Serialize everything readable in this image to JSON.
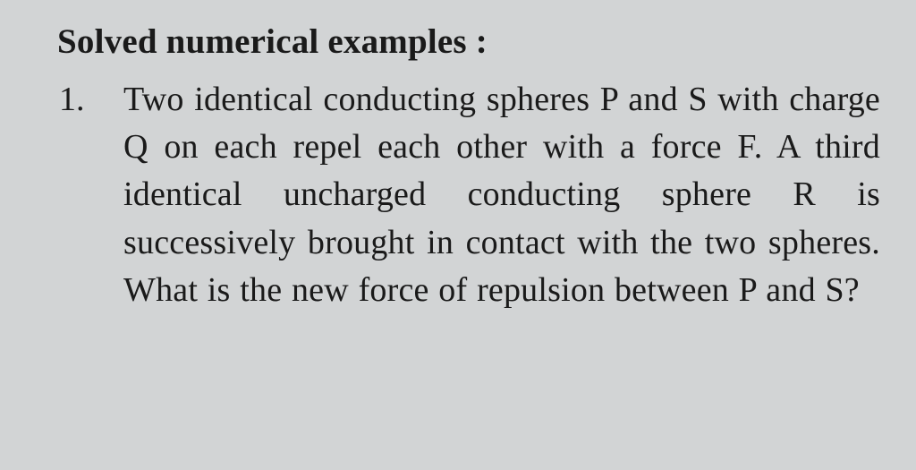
{
  "heading": "Solved numerical examples :",
  "examples": {
    "item1": {
      "number": "1.",
      "body": "Two identical conducting spheres P and S with charge Q on each repel each other with a force F. A third identical uncharged conducting sphere R is successively brought in contact with the two spheres. What is the new force of repulsion between P and S?"
    }
  },
  "style": {
    "background_color": "#d2d4d5",
    "text_color": "#1a1a1a",
    "heading_fontsize": 39,
    "body_fontsize": 38,
    "font_family": "Georgia, Times New Roman, serif"
  }
}
